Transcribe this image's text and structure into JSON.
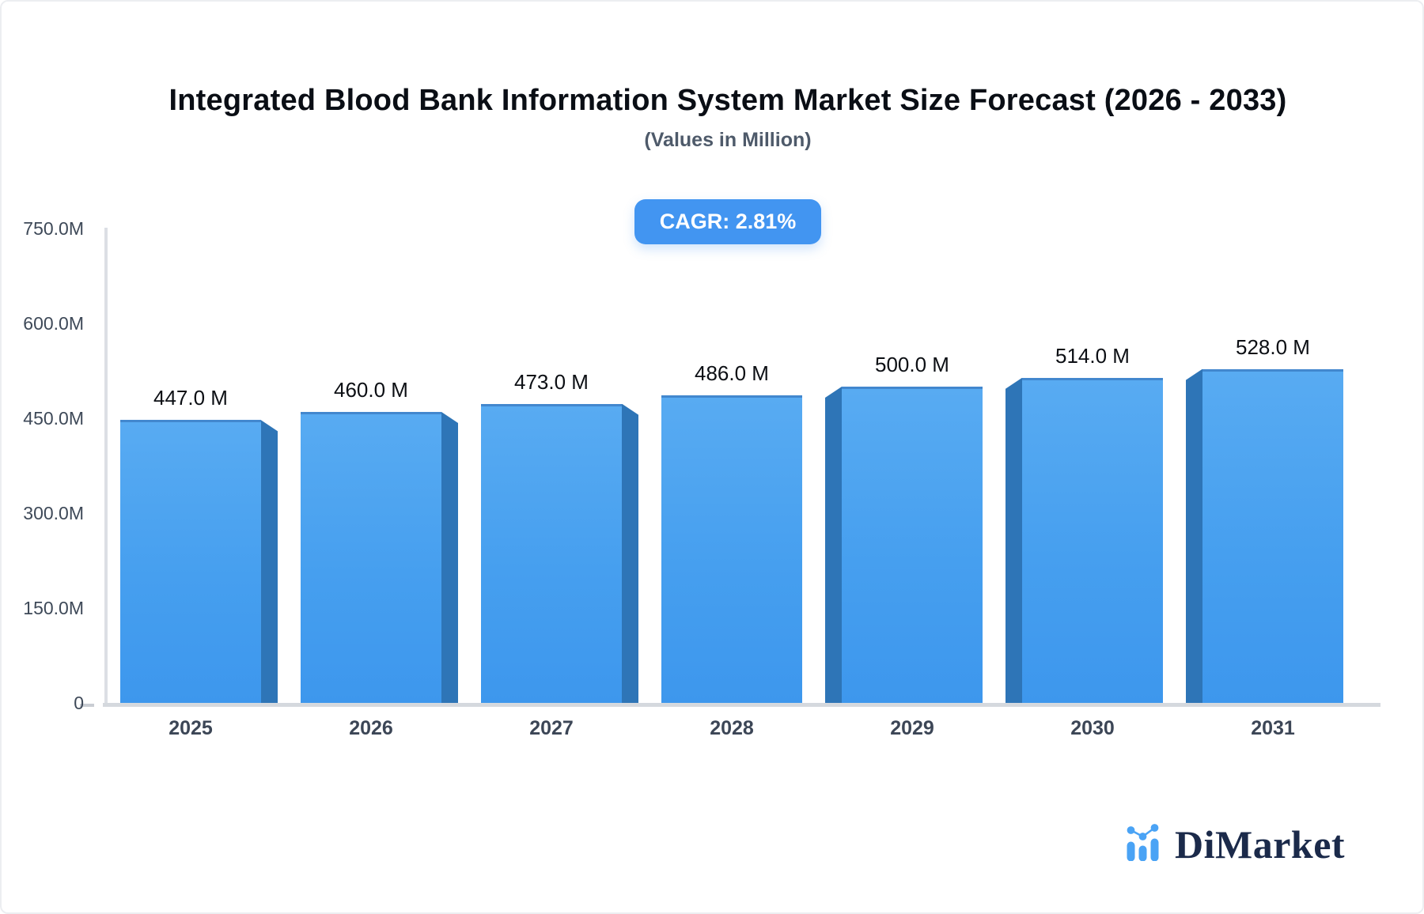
{
  "header": {
    "title": "Integrated Blood Bank Information System Market Size Forecast (2026 - 2033)",
    "subtitle": "(Values in Million)"
  },
  "badge": {
    "label": "CAGR: 2.81%",
    "background": "#4295f1",
    "text_color": "#ffffff"
  },
  "chart_data": {
    "type": "bar",
    "title": "Integrated Blood Bank Information System Market Size Forecast (2026 - 2033)",
    "subtitle": "(Values in Million)",
    "unit": "Million",
    "cagr": "2.81%",
    "categories": [
      "2025",
      "2026",
      "2027",
      "2028",
      "2029",
      "2030",
      "2031"
    ],
    "values": [
      447,
      460,
      473,
      486,
      500,
      514,
      528
    ],
    "bar_labels": [
      "447.0 M",
      "460.0 M",
      "473.0 M",
      "486.0 M",
      "500.0 M",
      "514.0 M",
      "528.0 M"
    ],
    "ylim": [
      0,
      750
    ],
    "y_ticks": [
      {
        "value": 0,
        "label": "0"
      },
      {
        "value": 150,
        "label": "150.0M"
      },
      {
        "value": 300,
        "label": "300.0M"
      },
      {
        "value": 450,
        "label": "450.0M"
      },
      {
        "value": 600,
        "label": "600.0M"
      },
      {
        "value": 750,
        "label": "750.0M"
      }
    ],
    "grid": false,
    "legend": "none",
    "colors": {
      "bar_top": "#58abf2",
      "bar_bottom": "#3d97ed",
      "bar_top_edge": "#4287ce",
      "bar_side": "#2e75b7",
      "axis": "#dcdfe4",
      "baseline": "#d5d9de"
    }
  },
  "logo": {
    "text": "DiMarket",
    "icon": "bar-chart-sparkline-icon",
    "icon_color": "#4aa3f5",
    "text_color": "#1b2a4a"
  }
}
